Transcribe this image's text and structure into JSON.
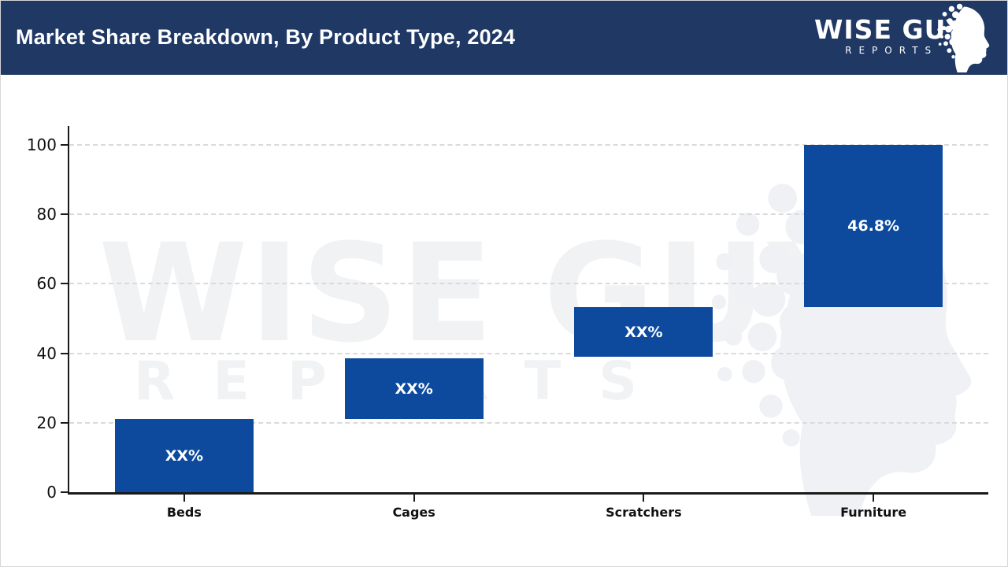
{
  "header": {
    "title": "Market Share Breakdown, By Product Type, 2024",
    "logo": {
      "line1": "WISE GUY",
      "line2": "REPORTS"
    }
  },
  "watermark": {
    "line1": "WISE GUY",
    "line2": "REPORTS"
  },
  "colors": {
    "header_bg": "#1f3864",
    "title_text": "#ffffff",
    "bar": "#0d4a9e",
    "bar_label": "#ffffff",
    "gridline": "#dadada",
    "axis": "#1a1a1a",
    "watermark": "#f1f2f4"
  },
  "chart_data": {
    "type": "bar",
    "subtype": "waterfall",
    "title": "Market Share Breakdown, By Product Type, 2024",
    "xlabel": "",
    "ylabel": "",
    "categories": [
      "Beds",
      "Cages",
      "Scratchers",
      "Furniture"
    ],
    "segments": [
      {
        "category": "Beds",
        "start": 0,
        "end": 21,
        "label": "XX%"
      },
      {
        "category": "Cages",
        "start": 21,
        "end": 38.5,
        "label": "XX%"
      },
      {
        "category": "Scratchers",
        "start": 39,
        "end": 53.2,
        "label": "XX%"
      },
      {
        "category": "Furniture",
        "start": 53.2,
        "end": 100,
        "label": "46.8%"
      }
    ],
    "yticks": [
      0,
      20,
      40,
      60,
      80,
      100
    ],
    "ylim": [
      0,
      105
    ],
    "grid": "horizontal-dashed",
    "legend": "none"
  }
}
